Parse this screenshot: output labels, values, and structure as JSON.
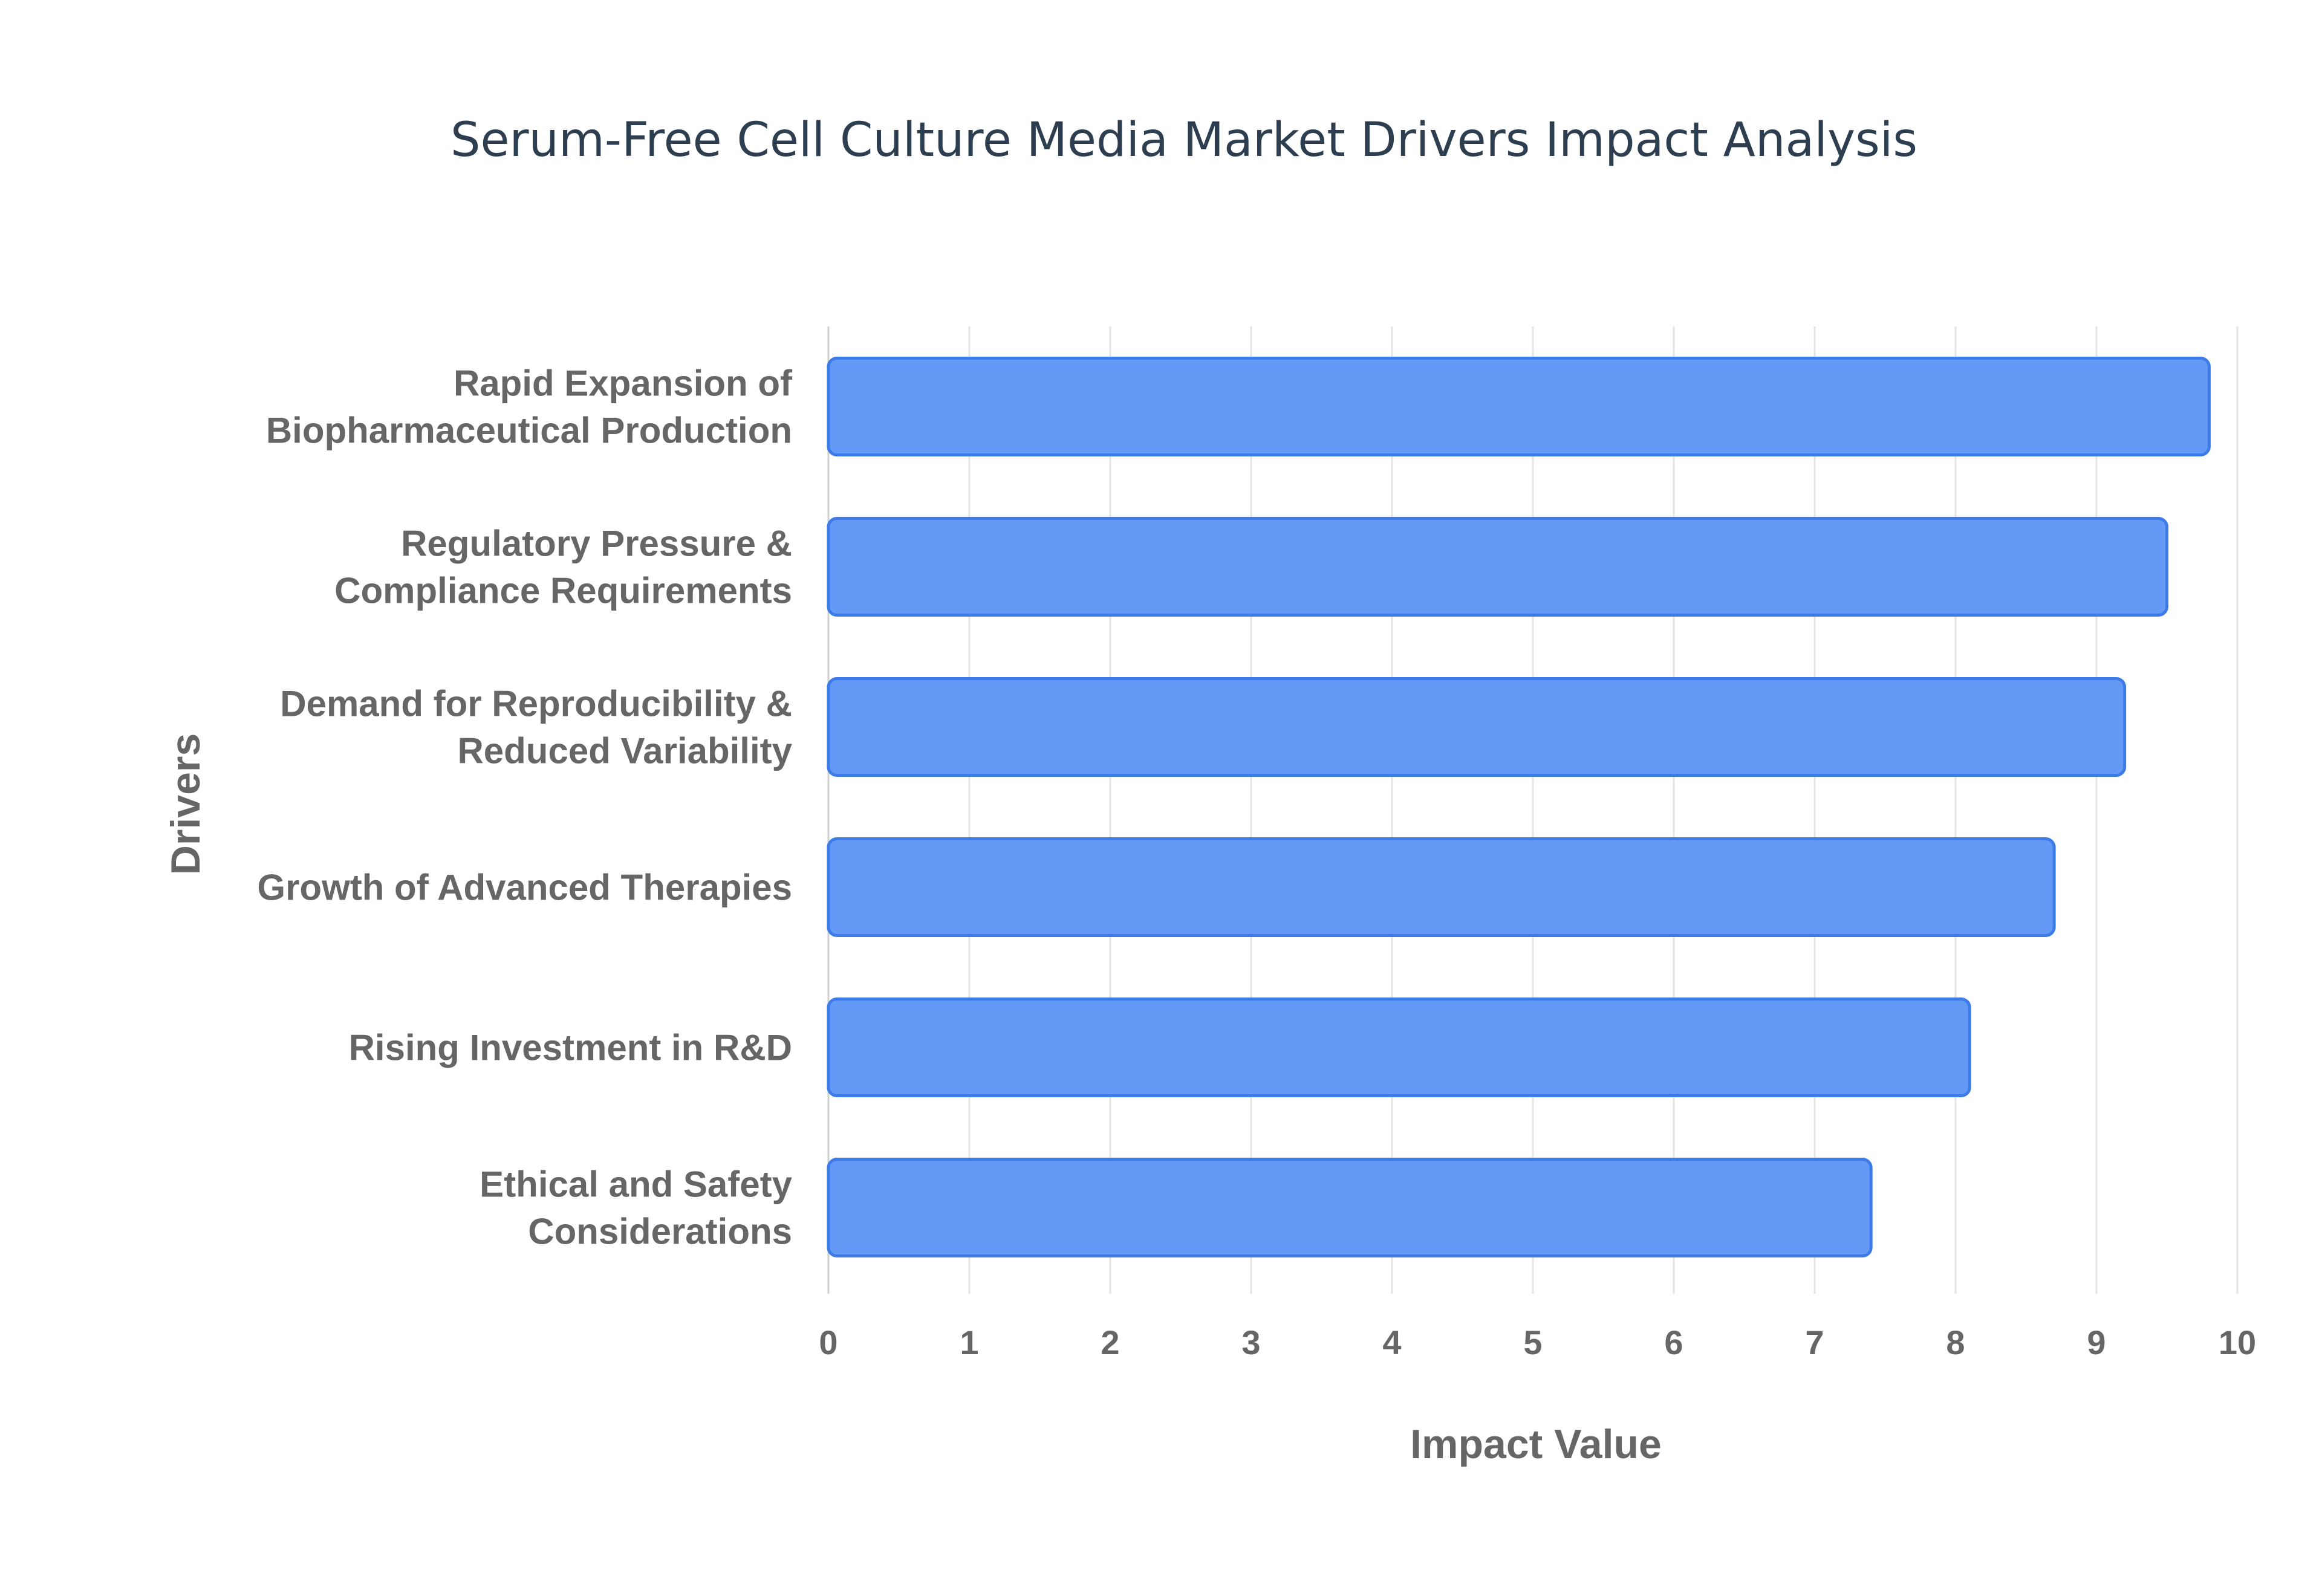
{
  "chart_data": {
    "type": "bar",
    "orientation": "horizontal",
    "title": "Serum-Free Cell Culture Media Market Drivers Impact Analysis",
    "xlabel": "Impact Value",
    "ylabel": "Drivers",
    "xlim": [
      0,
      10
    ],
    "x_ticks": [
      0,
      1,
      2,
      3,
      4,
      5,
      6,
      7,
      8,
      9,
      10
    ],
    "grid": true,
    "legend": "none",
    "categories": [
      [
        "Rapid Expansion of",
        "Biopharmaceutical Production"
      ],
      [
        "Regulatory Pressure &",
        "Compliance Requirements"
      ],
      [
        "Demand for Reproducibility &",
        "Reduced Variability"
      ],
      [
        "Growth of Advanced Therapies"
      ],
      [
        "Rising Investment in R&D"
      ],
      [
        "Ethical and Safety",
        "Considerations"
      ]
    ],
    "values": [
      9.8,
      9.5,
      9.2,
      8.7,
      8.1,
      7.4
    ],
    "colors": {
      "bar_fill": "#6499f5",
      "bar_stroke": "#3d7be8",
      "text": "#666666",
      "title": "#2c3e50"
    }
  }
}
